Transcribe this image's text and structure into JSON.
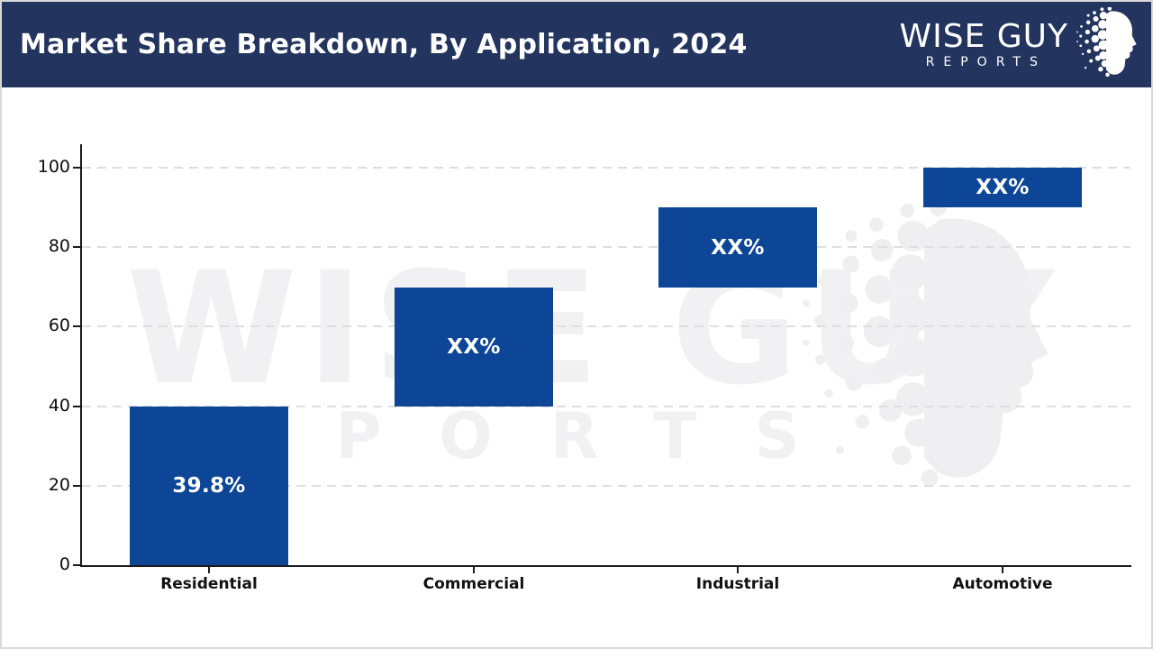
{
  "header": {
    "title": "Market Share Breakdown, By Application, 2024",
    "logo": {
      "line1": "WISE GUY",
      "line2": "REPORTS"
    }
  },
  "watermark": {
    "line1": "WISE GUY",
    "line2": "PORTS"
  },
  "colors": {
    "header_bg": "#23355f",
    "bar": "#0d4696",
    "bar_label": "#ffffff",
    "grid": "#dedede",
    "axis": "#1a1a1a",
    "watermark": "#f1f1f3",
    "frame_border": "#d9d9d9"
  },
  "chart_data": {
    "type": "bar",
    "subtype": "waterfall",
    "title": "Market Share Breakdown, By Application, 2024",
    "categories": [
      "Residential",
      "Commercial",
      "Industrial",
      "Automotive"
    ],
    "segments": [
      {
        "category": "Residential",
        "start": 0,
        "end": 39.8,
        "label": "39.8%"
      },
      {
        "category": "Commercial",
        "start": 39.8,
        "end": 69.8,
        "label": "XX%"
      },
      {
        "category": "Industrial",
        "start": 69.8,
        "end": 90,
        "label": "XX%"
      },
      {
        "category": "Automotive",
        "start": 90,
        "end": 100,
        "label": "XX%"
      }
    ],
    "values": [
      39.8,
      30,
      20.2,
      10
    ],
    "ylim": [
      0,
      100
    ],
    "yticks": [
      0,
      20,
      40,
      60,
      80,
      100
    ],
    "grid": {
      "axis": "y",
      "style": "dashed"
    },
    "legend": null,
    "bar_color": "#0d4696",
    "bar_label_color": "#ffffff"
  }
}
